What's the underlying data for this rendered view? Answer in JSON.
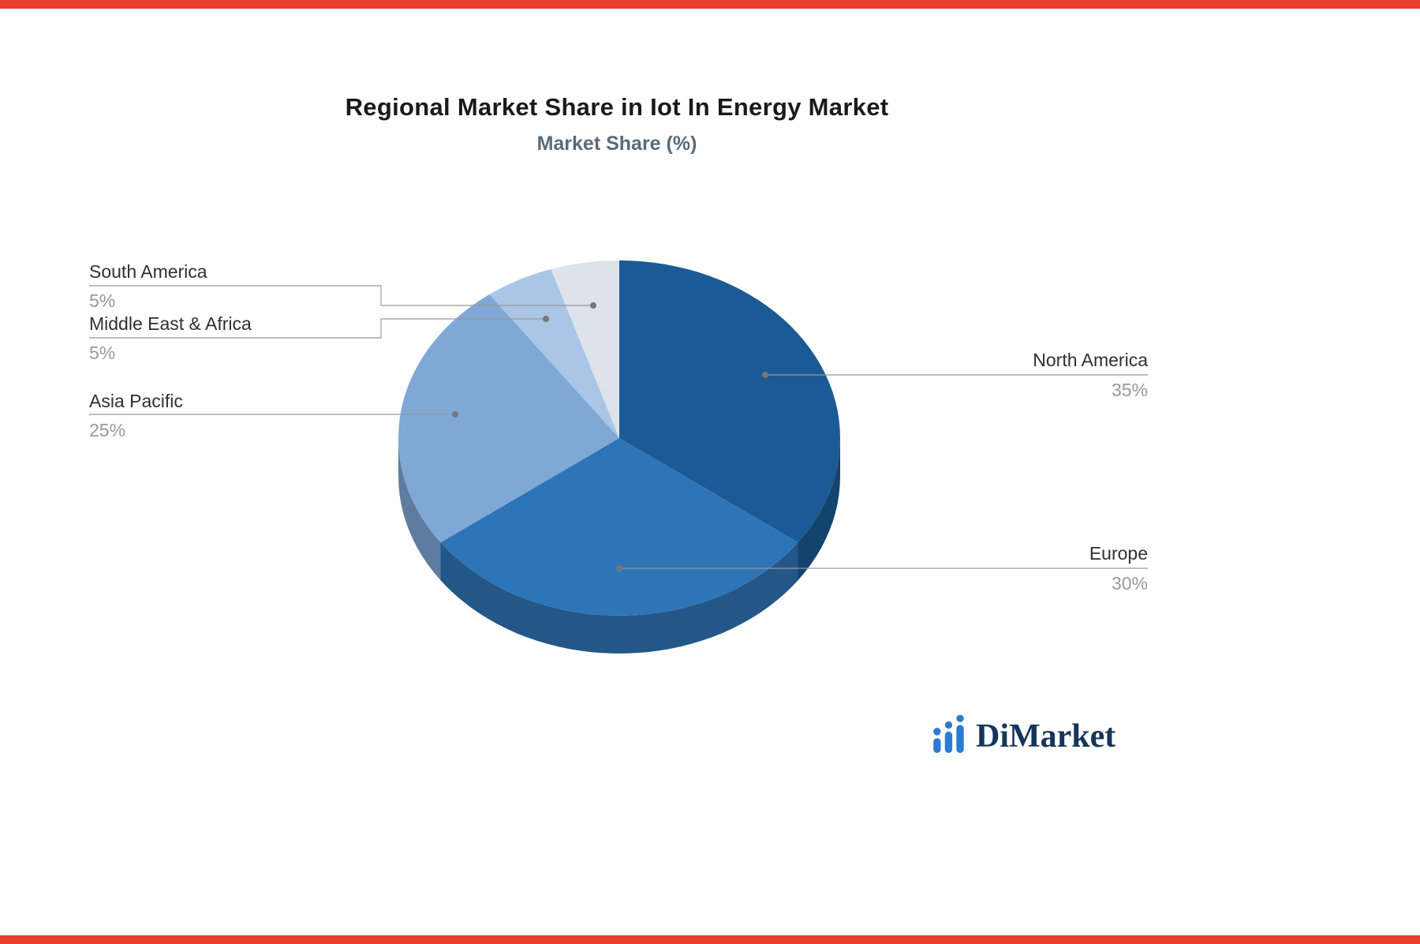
{
  "page": {
    "background": "#ffffff",
    "accent_bar_color": "#e53e2d"
  },
  "header": {
    "title": "Regional Market Share in Iot In Energy Market",
    "subtitle": "Market Share (%)"
  },
  "chart_data": {
    "type": "pie",
    "style": "3d",
    "title": "Regional Market Share in Iot In Energy Market",
    "subtitle": "Market Share (%)",
    "unit": "%",
    "labels": [
      "North America",
      "Europe",
      "Asia Pacific",
      "Middle East & Africa",
      "South America"
    ],
    "values": [
      35,
      30,
      25,
      5,
      5
    ],
    "value_texts": [
      "35%",
      "30%",
      "25%",
      "5%",
      "5%"
    ],
    "colors": [
      "#1b5a94",
      "#2e75b8",
      "#7fa8d6",
      "#a9c6e6",
      "#dde3eb"
    ],
    "start_angle_deg": 0,
    "direction": "clockwise",
    "legend": "none",
    "connector_color": "#999999",
    "dot_color": "#777777"
  },
  "branding": {
    "logo_text": "DiMarket",
    "logo_icon": "bar-chart-icon",
    "text_color": "#16355a",
    "icon_color": "#2b7bd4"
  }
}
